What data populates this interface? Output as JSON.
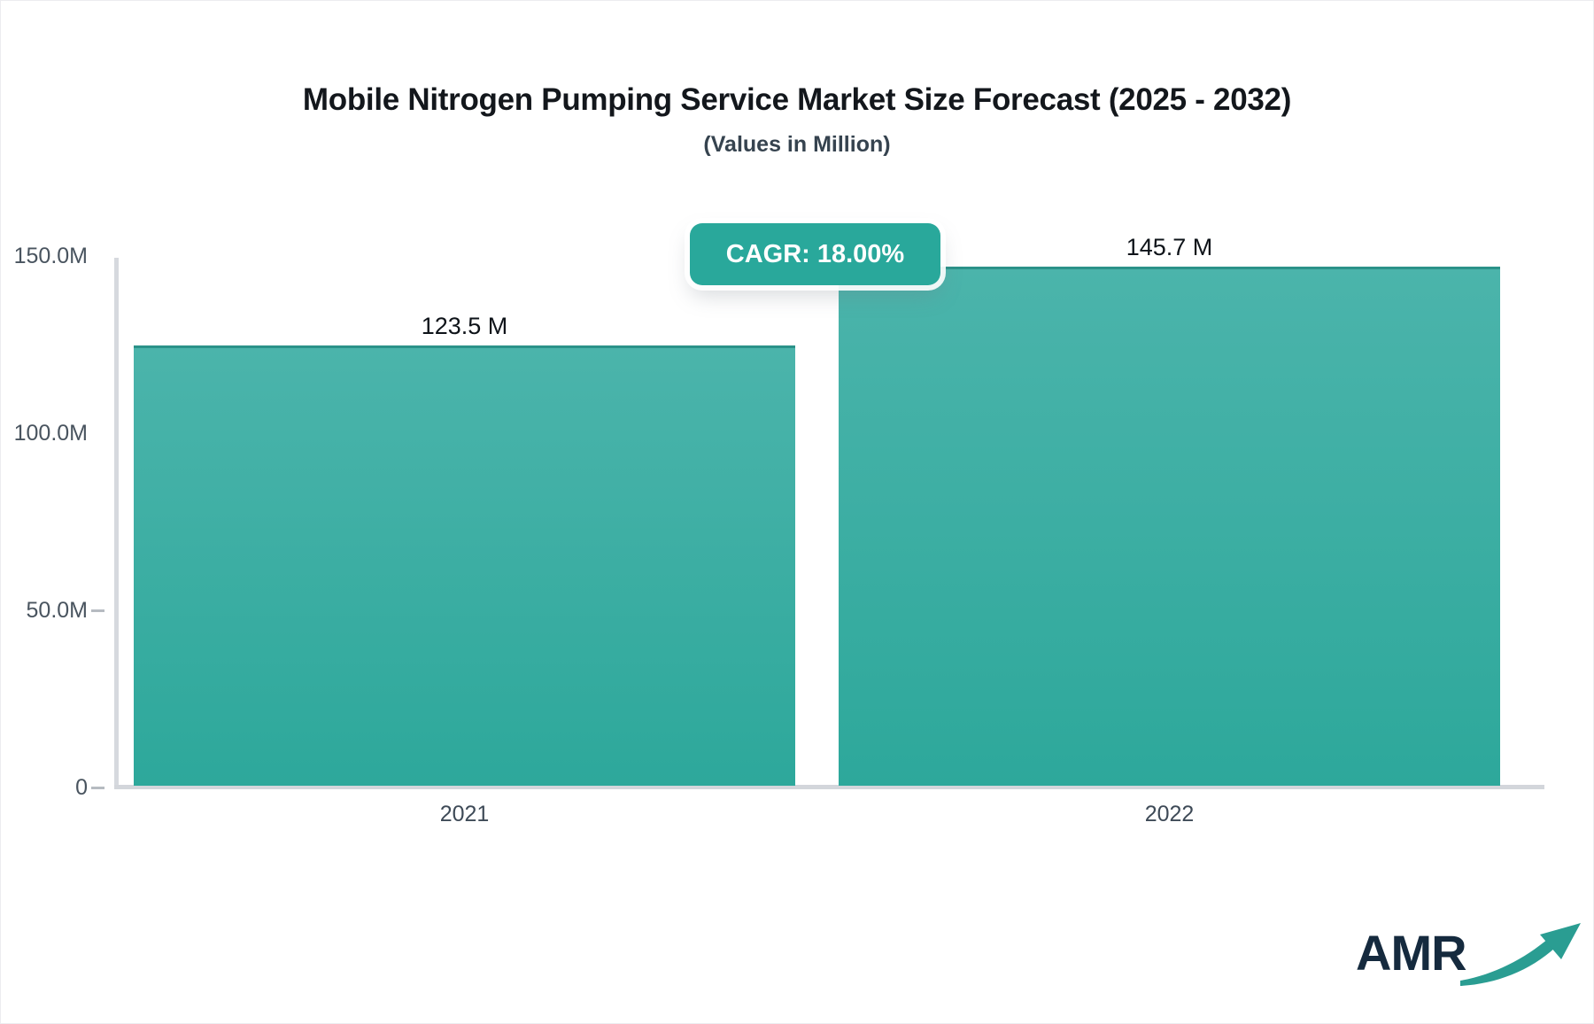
{
  "header": {
    "title": "Mobile Nitrogen Pumping Service Market Size Forecast (2025 - 2032)",
    "subtitle": "(Values in Million)"
  },
  "cagr_badge": {
    "label": "CAGR: 18.00%",
    "background": "#29a89b",
    "text_color": "#ffffff"
  },
  "chart_data": {
    "type": "bar",
    "title": "Mobile Nitrogen Pumping Service Market Size Forecast (2025 - 2032)",
    "subtitle": "(Values in Million)",
    "unit": "Million",
    "categories": [
      "2021",
      "2022"
    ],
    "values": [
      123.5,
      145.7
    ],
    "value_labels": [
      "123.5 M",
      "145.7 M"
    ],
    "cagr_label": "CAGR: 18.00%",
    "cagr_percent": "18.00%",
    "y_axis": {
      "tick_labels": [
        "150.0M",
        "100.0M",
        "50.0M",
        "0"
      ],
      "tick_values": [
        150,
        100,
        50,
        0
      ],
      "range": [
        0,
        150
      ]
    },
    "x_axis": {
      "labels": [
        "2021",
        "2022"
      ]
    },
    "legend": "none",
    "grid": "off",
    "bar_color_top": "#4bb4ab",
    "bar_color_bottom": "#2da89b",
    "bar_border_color": "#2b9289"
  },
  "logo": {
    "text": "AMR",
    "text_color": "#152a3e",
    "arrow_color": "#2a9d92"
  }
}
